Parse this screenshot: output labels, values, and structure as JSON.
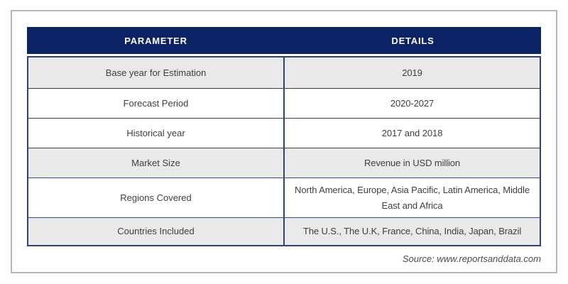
{
  "chart_data": {
    "type": "table",
    "title": "Report scope parameters table",
    "columns": [
      "PARAMETER",
      "DETAILS"
    ],
    "rows": [
      [
        "Base year for Estimation",
        "2019"
      ],
      [
        "Forecast Period",
        "2020-2027"
      ],
      [
        "Historical year",
        "2017 and 2018"
      ],
      [
        "Market Size",
        "Revenue in USD million"
      ],
      [
        "Regions Covered",
        "North America, Europe, Asia Pacific, Latin America, Middle East and Africa"
      ],
      [
        "Countries Included",
        "The U.S., The  U.K, France, China, India, Japan, Brazil"
      ]
    ],
    "layout": {
      "alternating_row_shading": "rows 1, 4, 6 shaded gray",
      "header_position": "top"
    }
  },
  "source": {
    "text": "Source: www.reportsanddata.com"
  },
  "colors": {
    "header_bg": "#0c2363",
    "header_text": "#ffffff",
    "alt_row_bg": "#e9e9e9",
    "row_bg": "#ffffff",
    "table_border": "#2e4077",
    "row_separator_dark": "#3f3f3f",
    "card_border": "#b5b5b5",
    "cell_text": "#3f3f3f",
    "source_text": "#4c4c4c"
  }
}
